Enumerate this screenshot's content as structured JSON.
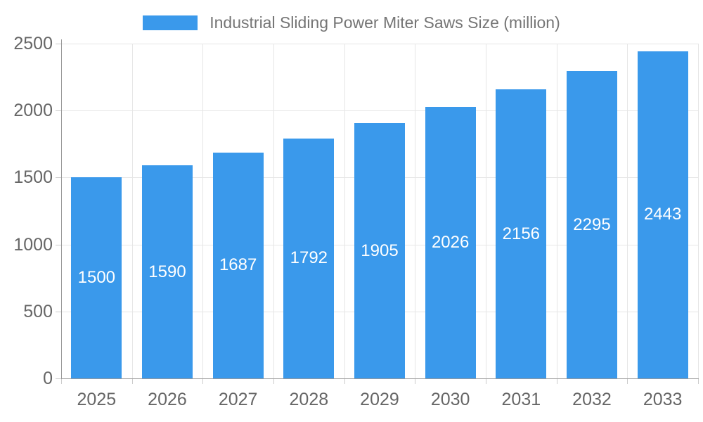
{
  "chart_data": {
    "type": "bar",
    "title": "Industrial Sliding Power Miter Saws Size (million)",
    "categories": [
      "2025",
      "2026",
      "2027",
      "2028",
      "2029",
      "2030",
      "2031",
      "2032",
      "2033"
    ],
    "values": [
      1500,
      1590,
      1687,
      1792,
      1905,
      2026,
      2156,
      2295,
      2443
    ],
    "xlabel": "",
    "ylabel": "",
    "ylim": [
      0,
      2500
    ],
    "yticks": [
      0,
      500,
      1000,
      1500,
      2000,
      2500
    ],
    "legend_position": "top-center",
    "grid": true,
    "colors": {
      "bar": "#3A99EB",
      "value_label": "#ffffff",
      "axis_text": "#666666",
      "title_text": "#757575",
      "gridline": "#e6e6e6",
      "axis_line": "#999999",
      "tick": "#cccccc",
      "background": "#ffffff"
    }
  }
}
